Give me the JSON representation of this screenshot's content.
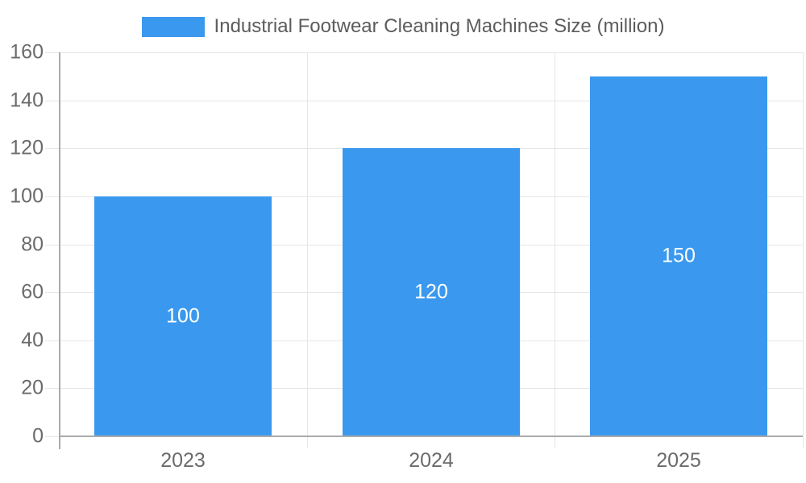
{
  "chart_data": {
    "type": "bar",
    "title": "Industrial Footwear Cleaning Machines Size (million)",
    "categories": [
      "2023",
      "2024",
      "2025"
    ],
    "series": [
      {
        "name": "Industrial Footwear Cleaning Machines Size (million)",
        "values": [
          100,
          120,
          150
        ]
      }
    ],
    "bar_value_labels": [
      "100",
      "120",
      "150"
    ],
    "ylim": [
      0,
      160
    ],
    "yticks": [
      0,
      20,
      40,
      60,
      80,
      100,
      120,
      140,
      160
    ],
    "grid": "on",
    "legend_position": "top-center",
    "colors": {
      "bar": "#3a99ee",
      "bar_label_text": "#ffffff",
      "gridline": "#e6e6e6",
      "axis_line": "#aaaaaa",
      "tick_text": "#6b6b6b",
      "legend_text": "#5c5c5c",
      "background": "#ffffff"
    }
  },
  "legend": {
    "label": "Industrial Footwear Cleaning Machines Size (million)"
  }
}
